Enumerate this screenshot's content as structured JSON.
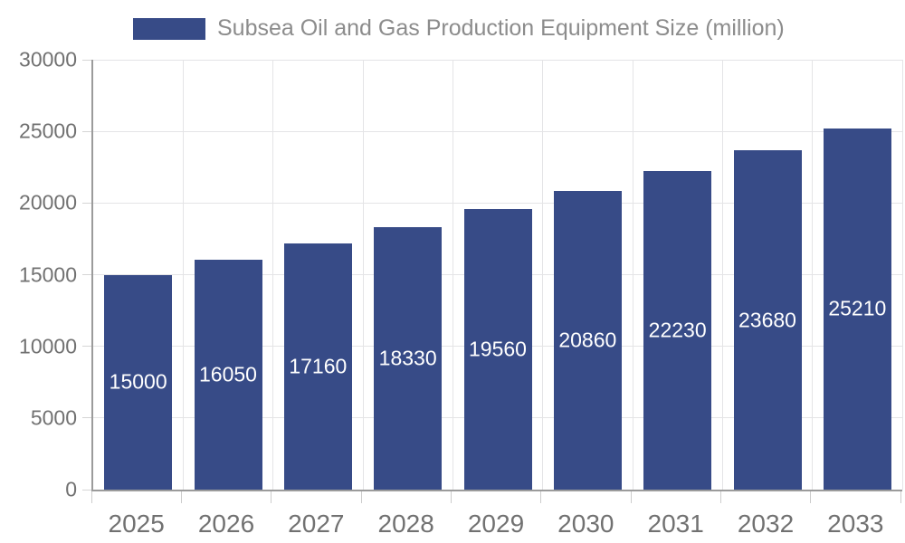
{
  "legend": {
    "label": "Subsea Oil and Gas Production Equipment Size (million)"
  },
  "chart_data": {
    "type": "bar",
    "title": "Subsea Oil and Gas Production Equipment Size (million)",
    "categories": [
      "2025",
      "2026",
      "2027",
      "2028",
      "2029",
      "2030",
      "2031",
      "2032",
      "2033"
    ],
    "values": [
      15000,
      16050,
      17160,
      18330,
      19560,
      20860,
      22230,
      23680,
      25210
    ],
    "series": [
      {
        "name": "Subsea Oil and Gas Production Equipment Size (million)",
        "values": [
          15000,
          16050,
          17160,
          18330,
          19560,
          20860,
          22230,
          23680,
          25210
        ]
      }
    ],
    "xlabel": "",
    "ylabel": "",
    "ylim": [
      0,
      30000
    ],
    "yticks": [
      0,
      5000,
      10000,
      15000,
      20000,
      25000,
      30000
    ],
    "grid": true,
    "legend_position": "top",
    "bar_labels": "inside-centered-white"
  },
  "colors": {
    "bar": "#374B87",
    "grid": "#e4e4e6",
    "axis": "#9b9b9b",
    "y_tick": "#d5d5d5",
    "x_tick": "#cccccc",
    "title_text": "#8c8c8c",
    "tick_text": "#717171",
    "bar_label_text": "#ffffff",
    "background": "#ffffff"
  }
}
